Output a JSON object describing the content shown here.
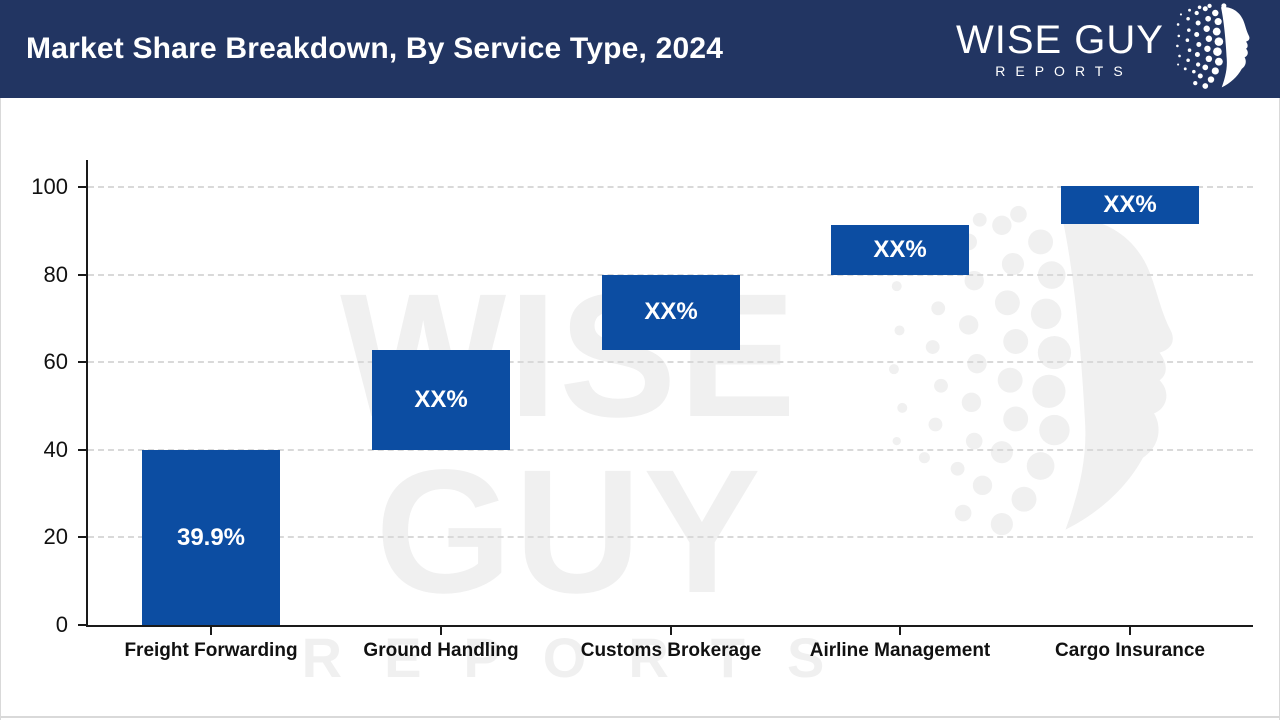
{
  "header": {
    "title": "Market Share Breakdown, By Service Type, 2024",
    "logo": {
      "brand_line1": "WISE GUY",
      "brand_line2": "REPORTS"
    }
  },
  "watermark": {
    "line1": "WISE GUY",
    "line2": "REPORTS"
  },
  "colors": {
    "header_bg": "#223562",
    "bar": "#0c4da2",
    "grid": "#d9d9d9",
    "axis": "#1a1a1a",
    "watermark": "#f0f0f0",
    "title_text": "#ffffff",
    "bar_label_text": "#ffffff"
  },
  "chart_data": {
    "type": "bar",
    "subtype": "waterfall",
    "title": "Market Share Breakdown, By Service Type, 2024",
    "categories": [
      "Freight Forwarding",
      "Ground Handling",
      "Customs Brokerage",
      "Airline Management",
      "Cargo Insurance"
    ],
    "segments": [
      {
        "category": "Freight Forwarding",
        "start": 0,
        "end": 39.9,
        "label": "39.9%"
      },
      {
        "category": "Ground Handling",
        "start": 40,
        "end": 62.7,
        "label": "XX%"
      },
      {
        "category": "Customs Brokerage",
        "start": 62.8,
        "end": 80,
        "label": "XX%"
      },
      {
        "category": "Airline Management",
        "start": 80,
        "end": 91.4,
        "label": "XX%"
      },
      {
        "category": "Cargo Insurance",
        "start": 91.6,
        "end": 100.2,
        "label": "XX%"
      }
    ],
    "xlabel": "",
    "ylabel": "",
    "ylim": [
      0,
      100
    ],
    "yticks": [
      0,
      20,
      40,
      60,
      80,
      100
    ],
    "grid": true,
    "grid_style": "dashed",
    "legend": false,
    "bar_color": "#0c4da2"
  }
}
